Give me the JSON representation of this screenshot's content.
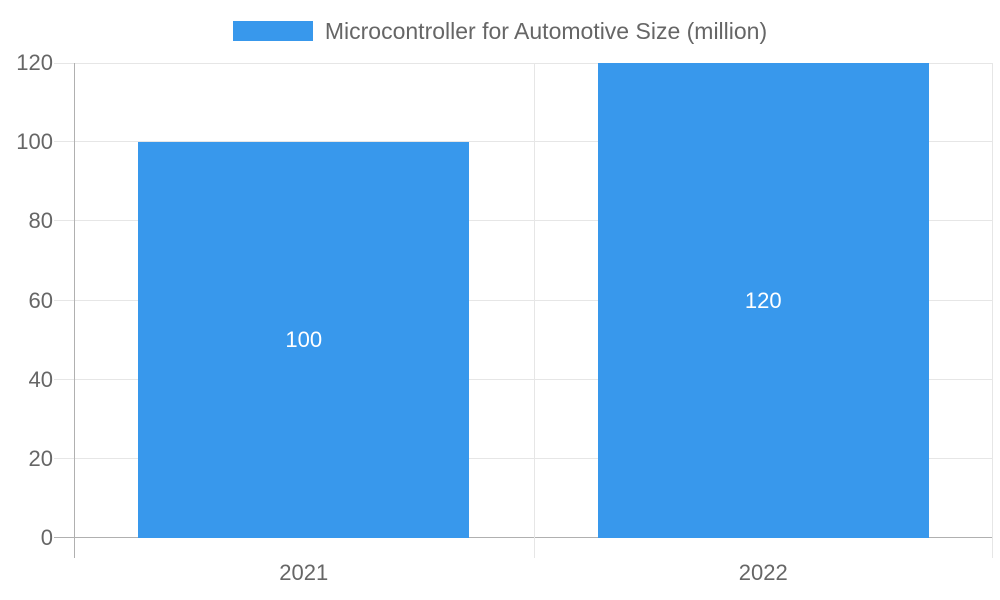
{
  "chart_data": {
    "type": "bar",
    "title": "Microcontroller for Automotive Size (million)",
    "categories": [
      "2021",
      "2022"
    ],
    "values": [
      100,
      120
    ],
    "bar_value_labels": [
      "100",
      "120"
    ],
    "xlabel": "",
    "ylabel": "",
    "ylim": [
      0,
      120
    ],
    "yticks": [
      0,
      20,
      40,
      60,
      80,
      100,
      120
    ],
    "legend_position": "top",
    "grid": true
  },
  "colors": {
    "bar": "#3898EC",
    "bar_label_text": "#FFFFFF",
    "legend_text": "#666666",
    "axis_text": "#666666",
    "gridline": "#E6E6E6",
    "axis_line": "#B0B0B0",
    "background": "#FFFFFF"
  }
}
